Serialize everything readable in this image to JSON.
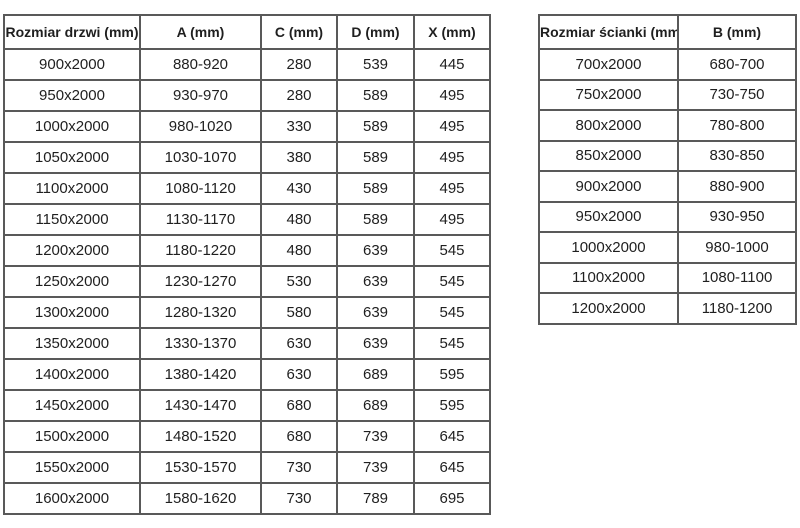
{
  "colors": {
    "border": "#595959",
    "text": "#1f1f1f",
    "background": "#ffffff"
  },
  "chart_data": [
    {
      "type": "table",
      "name": "door-sizes",
      "headers": [
        "Rozmiar drzwi (mm)",
        "A (mm)",
        "C (mm)",
        "D (mm)",
        "X (mm)"
      ],
      "rows": [
        [
          "900x2000",
          "880-920",
          "280",
          "539",
          "445"
        ],
        [
          "950x2000",
          "930-970",
          "280",
          "589",
          "495"
        ],
        [
          "1000x2000",
          "980-1020",
          "330",
          "589",
          "495"
        ],
        [
          "1050x2000",
          "1030-1070",
          "380",
          "589",
          "495"
        ],
        [
          "1100x2000",
          "1080-1120",
          "430",
          "589",
          "495"
        ],
        [
          "1150x2000",
          "1130-1170",
          "480",
          "589",
          "495"
        ],
        [
          "1200x2000",
          "1180-1220",
          "480",
          "639",
          "545"
        ],
        [
          "1250x2000",
          "1230-1270",
          "530",
          "639",
          "545"
        ],
        [
          "1300x2000",
          "1280-1320",
          "580",
          "639",
          "545"
        ],
        [
          "1350x2000",
          "1330-1370",
          "630",
          "639",
          "545"
        ],
        [
          "1400x2000",
          "1380-1420",
          "630",
          "689",
          "595"
        ],
        [
          "1450x2000",
          "1430-1470",
          "680",
          "689",
          "595"
        ],
        [
          "1500x2000",
          "1480-1520",
          "680",
          "739",
          "645"
        ],
        [
          "1550x2000",
          "1530-1570",
          "730",
          "739",
          "645"
        ],
        [
          "1600x2000",
          "1580-1620",
          "730",
          "789",
          "695"
        ]
      ]
    },
    {
      "type": "table",
      "name": "wall-sizes",
      "headers": [
        "Rozmiar ścianki (mm)",
        "B (mm)"
      ],
      "rows": [
        [
          "700x2000",
          "680-700"
        ],
        [
          "750x2000",
          "730-750"
        ],
        [
          "800x2000",
          "780-800"
        ],
        [
          "850x2000",
          "830-850"
        ],
        [
          "900x2000",
          "880-900"
        ],
        [
          "950x2000",
          "930-950"
        ],
        [
          "1000x2000",
          "980-1000"
        ],
        [
          "1100x2000",
          "1080-1100"
        ],
        [
          "1200x2000",
          "1180-1200"
        ]
      ]
    }
  ]
}
